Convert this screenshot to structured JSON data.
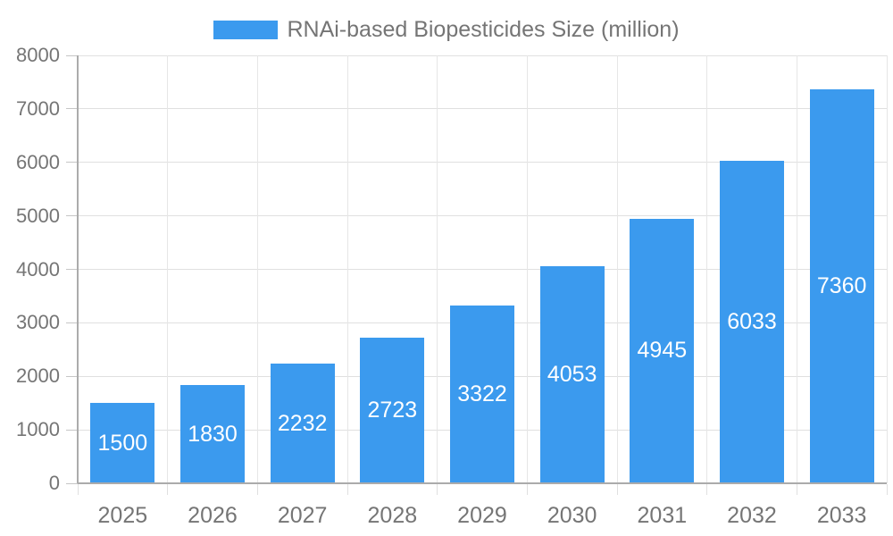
{
  "chart_data": {
    "type": "bar",
    "title": "RNAi-based Biopesticides Size (million)",
    "categories": [
      "2025",
      "2026",
      "2027",
      "2028",
      "2029",
      "2030",
      "2031",
      "2032",
      "2033"
    ],
    "values": [
      1500,
      1830,
      2232,
      2723,
      3322,
      4053,
      4945,
      6033,
      7360
    ],
    "xlabel": "",
    "ylabel": "",
    "ylim": [
      0,
      8000
    ],
    "yticks": [
      0,
      1000,
      2000,
      3000,
      4000,
      5000,
      6000,
      7000,
      8000
    ],
    "grid": true,
    "legend_position": "top-center",
    "colors": {
      "bar": "#3B9AEE",
      "bar_label": "#FFFFFF",
      "axis_text": "#757575",
      "grid_horizontal": "#E0E0E0",
      "grid_vertical": "#E6E6E6",
      "axis_line": "#ABABAB",
      "tick_y": "#C6C6C6",
      "tick_x": "#E0E0E0",
      "background": "#FFFFFF"
    }
  }
}
